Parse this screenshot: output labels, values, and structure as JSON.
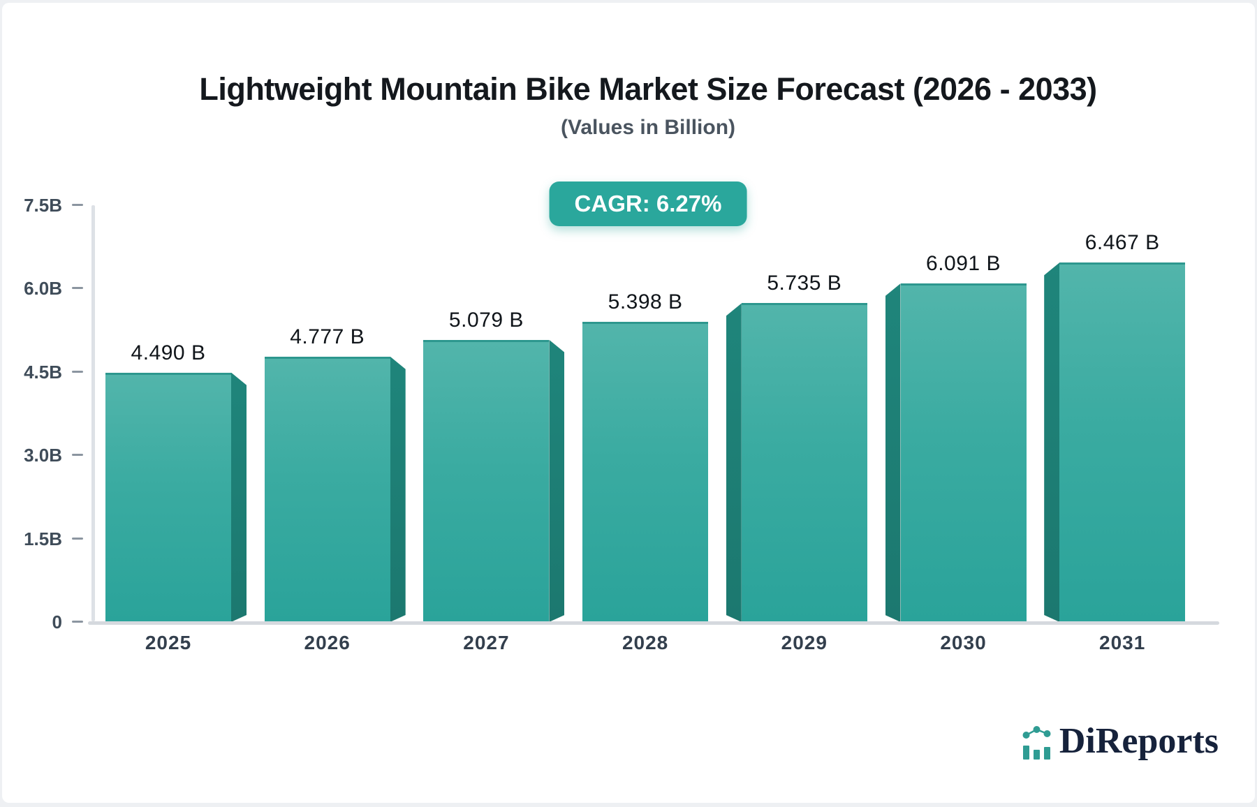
{
  "chart_data": {
    "type": "bar",
    "title": "Lightweight Mountain Bike Market Size Forecast (2026 - 2033)",
    "subtitle": "(Values in Billion)",
    "cagr_label": "CAGR: 6.27%",
    "categories": [
      "2025",
      "2026",
      "2027",
      "2028",
      "2029",
      "2030",
      "2031"
    ],
    "values": [
      4.49,
      4.777,
      5.079,
      5.398,
      5.735,
      6.091,
      6.467
    ],
    "value_labels": [
      "4.490 B",
      "4.777 B",
      "5.079 B",
      "5.398 B",
      "5.735 B",
      "6.091 B",
      "6.467 B"
    ],
    "xlabel": "",
    "ylabel": "",
    "ylim": [
      0,
      7.5
    ],
    "yticks": [
      {
        "value": 7.5,
        "label": "7.5B"
      },
      {
        "value": 6.0,
        "label": "6.0B"
      },
      {
        "value": 4.5,
        "label": "4.5B"
      },
      {
        "value": 3.0,
        "label": "3.0B"
      },
      {
        "value": 1.5,
        "label": "1.5B"
      },
      {
        "value": 0,
        "label": "0"
      }
    ],
    "grid": false,
    "legend": false,
    "bar_style": "pseudo-3d",
    "colors": {
      "bar_face_top": "#52b5ab",
      "bar_face_bottom": "#2aa39a",
      "bar_top_edge": "#2d978e",
      "bar_side": "#1e7e75",
      "accent": "#2aa79c",
      "axis": "#d5d9de",
      "tick_text": "#3f4c59",
      "value_text": "#10151a"
    }
  },
  "branding": {
    "logo_text": "DiReports",
    "logo_icon": "bar-line-chart-icon",
    "logo_icon_color": "#2f9c93",
    "logo_text_color": "#16223b"
  }
}
